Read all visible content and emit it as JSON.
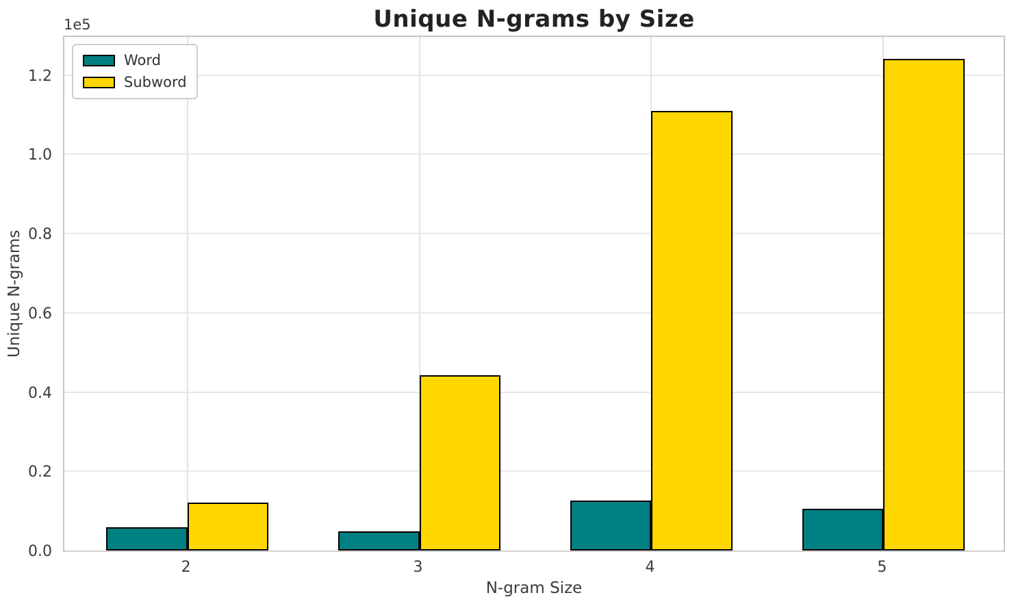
{
  "chart_data": {
    "type": "bar",
    "title": "Unique N-grams by Size",
    "xlabel": "N-gram Size",
    "ylabel": "Unique N-grams",
    "offset_text": "1e5",
    "categories": [
      "2",
      "3",
      "4",
      "5"
    ],
    "series": [
      {
        "name": "Word",
        "color": "#008080",
        "values": [
          5800,
          4900,
          12600,
          10500
        ]
      },
      {
        "name": "Subword",
        "color": "#FFD700",
        "values": [
          12100,
          44200,
          111000,
          124000
        ]
      }
    ],
    "ylim": [
      0,
      130300
    ],
    "yticks": [
      0,
      20000,
      40000,
      60000,
      80000,
      100000,
      120000
    ],
    "ytick_labels": [
      "0.0",
      "0.2",
      "0.4",
      "0.6",
      "0.8",
      "1.0",
      "1.2"
    ],
    "grid": true,
    "legend_position": "upper left",
    "bar_edge_color": "#000000",
    "grid_color": "#e8e8e8",
    "background_color": "#ffffff",
    "bar_width_fraction": 0.35
  }
}
